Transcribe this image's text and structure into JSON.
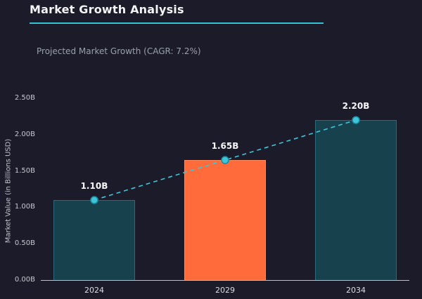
{
  "header": {
    "title": "Market Growth Analysis",
    "subtitle": "Projected Market Growth (CAGR: 7.2%)"
  },
  "colors": {
    "background": "#1b1b2a",
    "accent_underline": "#35c3d4",
    "trend_line": "#3ec6d8",
    "marker_fill": "#3ec6d8",
    "marker_stroke": "#1a8aa0",
    "axis_line": "#dcdce4"
  },
  "chart_data": {
    "type": "bar",
    "title": "Market Growth Analysis",
    "subtitle": "Projected Market Growth (CAGR: 7.2%)",
    "categories": [
      "2024",
      "2029",
      "2034"
    ],
    "values": [
      1.1,
      1.65,
      2.2
    ],
    "value_labels": [
      "1.10B",
      "1.65B",
      "2.20B"
    ],
    "bar_colors": [
      "#17424d",
      "#ff6b3a",
      "#17424d"
    ],
    "bar_borders": [
      "#2a6a7a",
      "#ff8a5e",
      "#2a6a7a"
    ],
    "xlabel": "",
    "ylabel": "Market Value (in Billions USD)",
    "ylim": [
      0,
      2.5
    ],
    "yticks": [
      {
        "value": 0.0,
        "label": "0.00B"
      },
      {
        "value": 0.5,
        "label": "0.50B"
      },
      {
        "value": 1.0,
        "label": "1.00B"
      },
      {
        "value": 1.5,
        "label": "1.50B"
      },
      {
        "value": 2.0,
        "label": "2.00B"
      },
      {
        "value": 2.5,
        "label": "2.50B"
      }
    ],
    "grid": false,
    "legend": false,
    "trendline": {
      "style": "dashed",
      "markers": true
    }
  }
}
